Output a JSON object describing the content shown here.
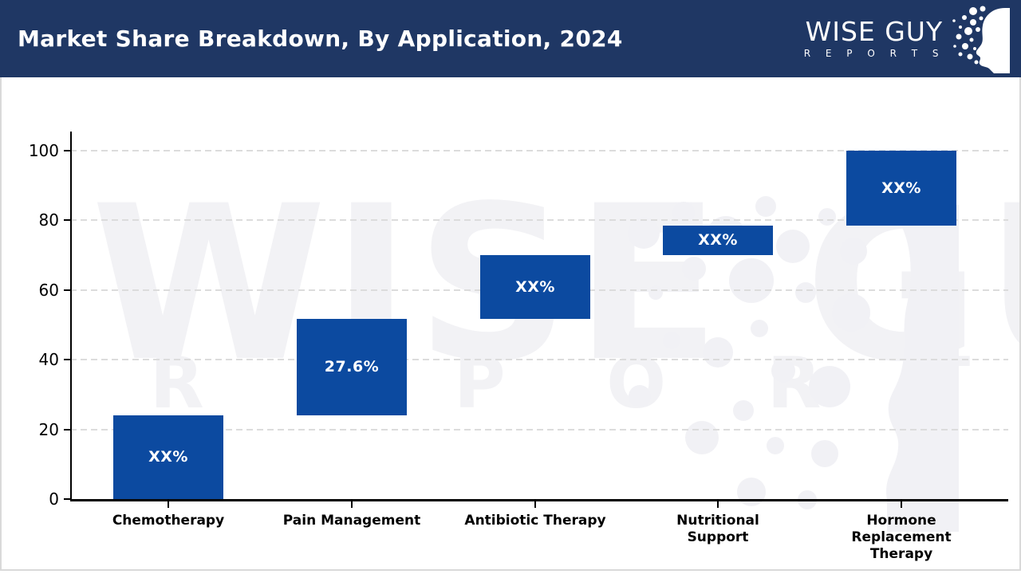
{
  "header": {
    "title": "Market Share Breakdown, By Application, 2024",
    "logo": {
      "primary": "WISE GUY",
      "secondary": "R E P O R T S"
    }
  },
  "watermark": {
    "primary": "WISE GUY",
    "secondary": "R E P O R T S"
  },
  "colors": {
    "header_bg": "#1F3764",
    "bar": "#0C4AA0",
    "bar_label": "#FFFFFF",
    "grid": "#DCDCDC",
    "axis": "#000000",
    "watermark": "#F2F2F5",
    "border": "#D9D9D9"
  },
  "chart_data": {
    "type": "bar",
    "subtype": "floating-waterfall",
    "title": "Market Share Breakdown, By Application, 2024",
    "xlabel": "",
    "ylabel": "",
    "ylim": [
      0,
      105
    ],
    "grid": "horizontal-dashed",
    "legend": "none",
    "y_axis": {
      "ticks": [
        0,
        20,
        40,
        60,
        80,
        100
      ]
    },
    "categories": [
      "Chemotherapy",
      "Pain Management",
      "Antibiotic Therapy",
      "Nutritional Support",
      "Hormone Replacement Therapy"
    ],
    "category_lines": [
      [
        "Chemotherapy"
      ],
      [
        "Pain Management"
      ],
      [
        "Antibiotic Therapy"
      ],
      [
        "Nutritional",
        "Support"
      ],
      [
        "Hormone",
        "Replacement",
        "Therapy"
      ]
    ],
    "bars": [
      {
        "category": "Chemotherapy",
        "start": 0,
        "end": 24.1,
        "value_label": "XX%"
      },
      {
        "category": "Pain Management",
        "start": 24.1,
        "end": 51.7,
        "value_label": "27.6%"
      },
      {
        "category": "Antibiotic Therapy",
        "start": 51.7,
        "end": 70.0,
        "value_label": "XX%"
      },
      {
        "category": "Nutritional Support",
        "start": 70.0,
        "end": 78.5,
        "value_label": "XX%"
      },
      {
        "category": "Hormone Replacement Therapy",
        "start": 78.5,
        "end": 100,
        "value_label": "XX%"
      }
    ]
  }
}
